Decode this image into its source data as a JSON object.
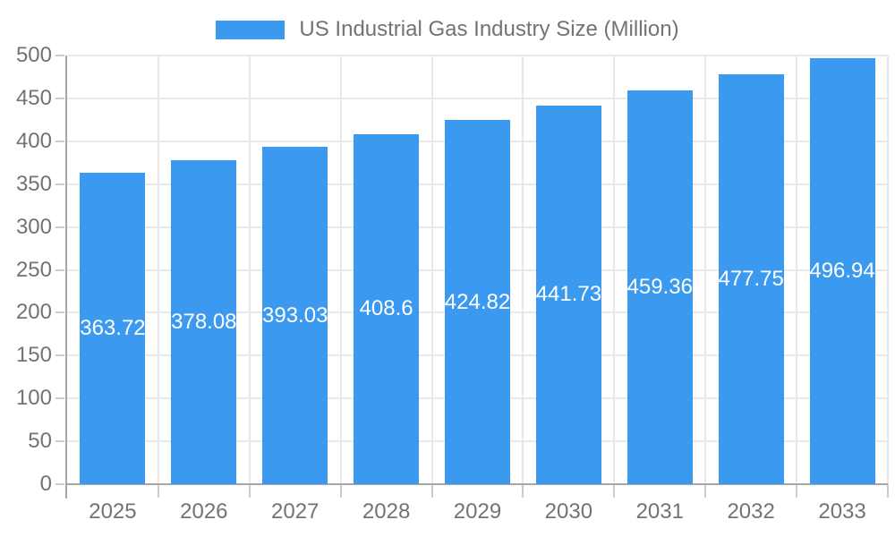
{
  "chart_data": {
    "type": "bar",
    "title": "US Industrial Gas Industry Size (Million)",
    "series_name": "US Industrial Gas Industry Size (Million)",
    "categories": [
      "2025",
      "2026",
      "2027",
      "2028",
      "2029",
      "2030",
      "2031",
      "2032",
      "2033"
    ],
    "values": [
      363.72,
      378.08,
      393.03,
      408.6,
      424.82,
      441.73,
      459.36,
      477.75,
      496.94
    ],
    "value_labels": [
      "363.72",
      "378.08",
      "393.03",
      "408.6",
      "424.82",
      "441.73",
      "459.36",
      "477.75",
      "496.94"
    ],
    "xlabel": "",
    "ylabel": "",
    "ylim": [
      0,
      500
    ],
    "ytick_step": 50,
    "yticks": [
      "0",
      "50",
      "100",
      "150",
      "200",
      "250",
      "300",
      "350",
      "400",
      "450",
      "500"
    ],
    "grid": "horizontal and vertical light gray gridlines",
    "legend_position": "top-center",
    "value_label_position": "inside-middle"
  },
  "colors": {
    "bar": "#3B9AF0",
    "bar_label_text": "#FFFFFF",
    "axis_line": "#A6A6A6",
    "grid_line": "#E9E9E9",
    "tick_mark": "#CCCCCC",
    "text": "#737373",
    "background": "#FFFFFF"
  }
}
